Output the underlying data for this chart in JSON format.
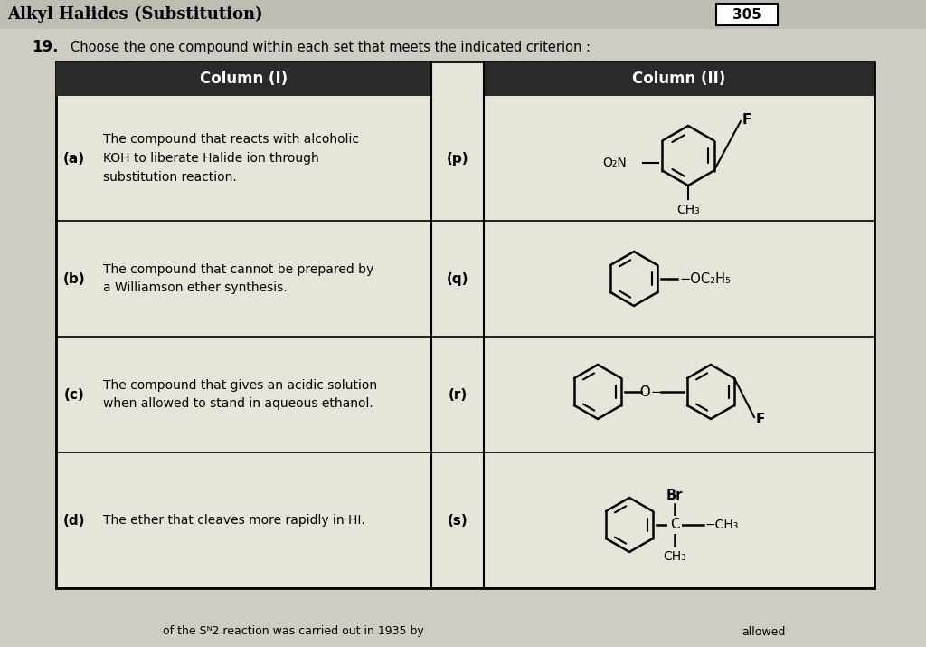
{
  "title_top": "Alkyl Halides (Substitution)",
  "page_number": "305",
  "question_number": "19.",
  "question_text": "Choose the one compound within each set that meets the indicated criterion :",
  "col1_header": "Column (I)",
  "col2_header": "Column (II)",
  "row_label_lefts": [
    "(a)",
    "(b)",
    "(c)",
    "(d)"
  ],
  "row_label_rights": [
    "(p)",
    "(q)",
    "(r)",
    "(s)"
  ],
  "row_texts": [
    "The compound that reacts with alcoholic\nKOH to liberate Halide ion through\nsubstitution reaction.",
    "The compound that cannot be prepared by\na Williamson ether synthesis.",
    "The compound that gives an acidic solution\nwhen allowed to stand in aqueous ethanol.",
    "The ether that cleaves more rapidly in HI."
  ],
  "bg_color": "#d0ccc4",
  "table_bg": "#e8e4da",
  "header_bg": "#2a2a2a",
  "header_text_color": "#ffffff",
  "text_color": "#000000",
  "border_color": "#000000",
  "bottom_text": "of the Sᴺ2 reaction was carried out in 1935 by",
  "bottom_text2": "allowed"
}
